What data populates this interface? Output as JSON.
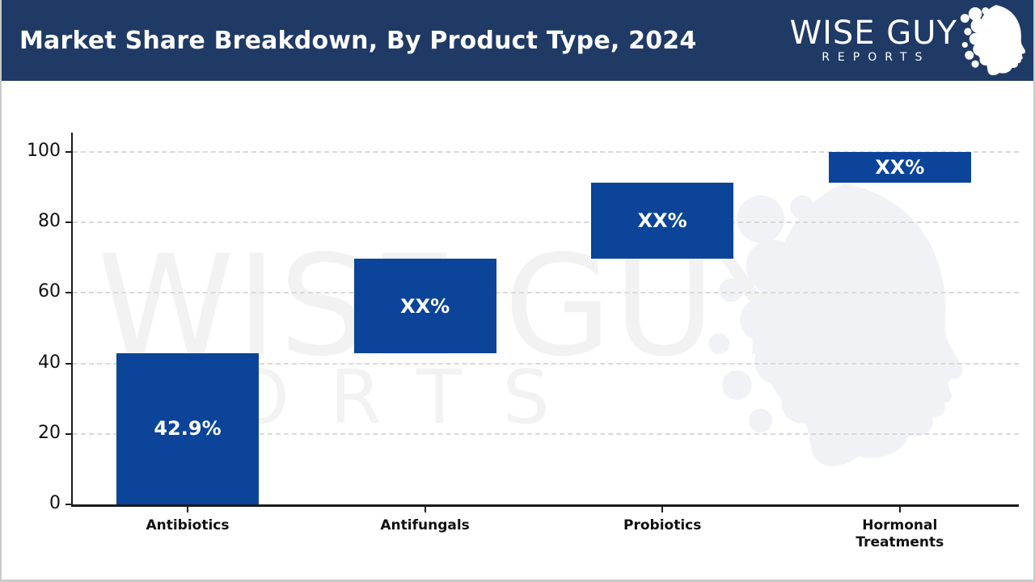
{
  "header": {
    "title": "Market Share Breakdown, By Product Type, 2024",
    "logo": {
      "line1": "WISE GUY",
      "line2": "REPORTS"
    }
  },
  "watermark": {
    "line1": "WISE GUY",
    "line2": "PORTS"
  },
  "colors": {
    "header_bg": "#203a66",
    "bar": "#0b4498",
    "bar_label_text": "#ffffff",
    "title_text": "#ffffff",
    "grid": "#d9d9d9",
    "axis": "#1a1a1a",
    "watermark": "#f2f2f2",
    "frame_border": "#c9c9c9"
  },
  "chart_data": {
    "type": "bar",
    "subtype": "waterfall-floating-segments",
    "title": "Market Share Breakdown, By Product Type, 2024",
    "xlabel": "",
    "ylabel": "",
    "ylim": [
      0,
      100
    ],
    "y_ticks": [
      0,
      20,
      40,
      60,
      80,
      100
    ],
    "grid": "horizontal-dashed",
    "legend": "none",
    "categories": [
      "Antibiotics",
      "Antifungals",
      "Probiotics",
      "Hormonal Treatments"
    ],
    "segments": [
      {
        "category": "Antibiotics",
        "from": 0,
        "to": 42.9,
        "label": "42.9%"
      },
      {
        "category": "Antifungals",
        "from": 42.9,
        "to": 69.7,
        "label": "XX%"
      },
      {
        "category": "Probiotics",
        "from": 69.7,
        "to": 91.2,
        "label": "XX%"
      },
      {
        "category": "Hormonal Treatments",
        "from": 91.2,
        "to": 100,
        "label": "XX%"
      }
    ]
  }
}
